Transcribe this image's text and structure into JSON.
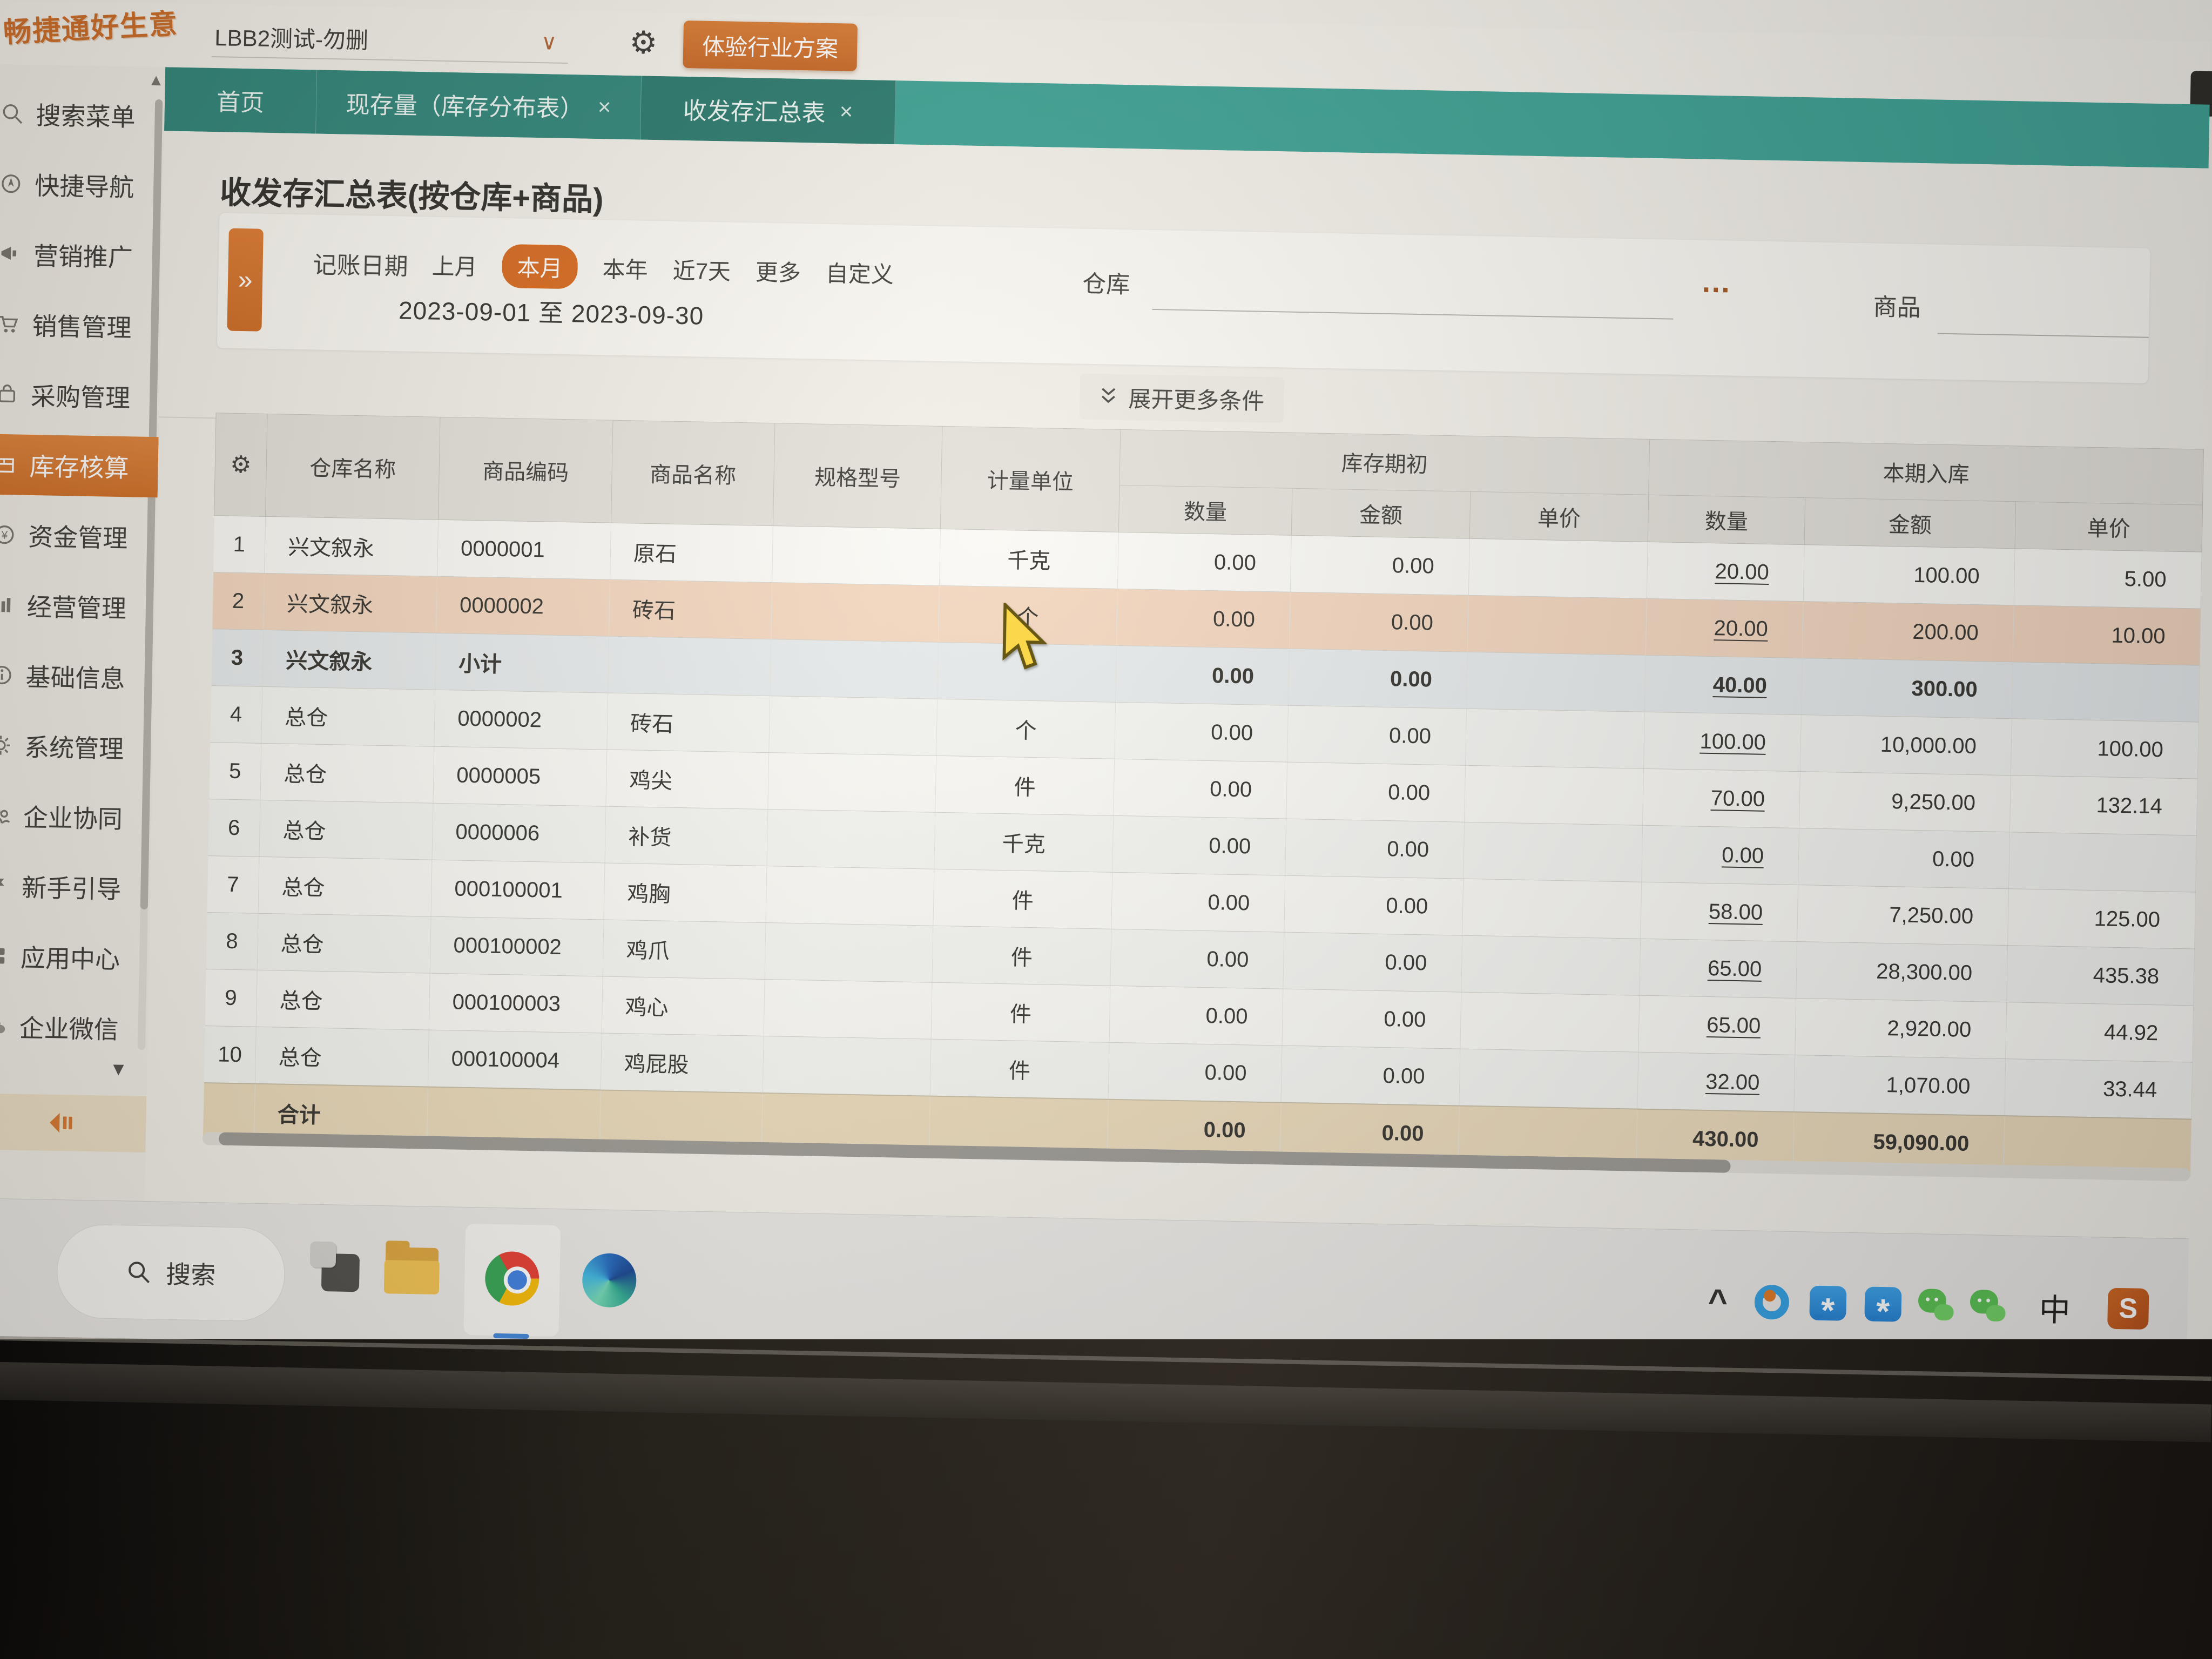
{
  "glyphs": {
    "close": "×",
    "dropdown": "∨",
    "expand": "»",
    "up_arrow": "▲",
    "down_arrow": "▼",
    "gear": "⚙",
    "tray_chevron": "^",
    "star": "*"
  },
  "top_bar": {
    "logo": "畅捷通好生意",
    "company": "LBB2测试-勿删",
    "trial_button": "体验行业方案"
  },
  "tabs": [
    {
      "label": "首页",
      "closable": false,
      "active": false
    },
    {
      "label": "现存量（库存分布表）",
      "closable": true,
      "active": false
    },
    {
      "label": "收发存汇总表",
      "closable": true,
      "active": true
    }
  ],
  "sidebar": {
    "items": [
      {
        "label": "搜索菜单",
        "icon": "search-icon",
        "active": false
      },
      {
        "label": "快捷导航",
        "icon": "compass-icon",
        "active": false
      },
      {
        "label": "营销推广",
        "icon": "megaphone-icon",
        "active": false
      },
      {
        "label": "销售管理",
        "icon": "cart-icon",
        "active": false
      },
      {
        "label": "采购管理",
        "icon": "bag-icon",
        "active": false
      },
      {
        "label": "库存核算",
        "icon": "box-icon",
        "active": true
      },
      {
        "label": "资金管理",
        "icon": "money-icon",
        "active": false
      },
      {
        "label": "经营管理",
        "icon": "chart-icon",
        "active": false
      },
      {
        "label": "基础信息",
        "icon": "info-icon",
        "active": false
      },
      {
        "label": "系统管理",
        "icon": "gear-icon",
        "active": false
      },
      {
        "label": "企业协同",
        "icon": "people-icon",
        "active": false
      },
      {
        "label": "新手引导",
        "icon": "flag-icon",
        "active": false
      },
      {
        "label": "应用中心",
        "icon": "grid-icon",
        "active": false
      },
      {
        "label": "企业微信",
        "icon": "wechat-icon",
        "active": false
      }
    ]
  },
  "page": {
    "title": "收发存汇总表(按仓库+商品)",
    "filter": {
      "date_label": "记账日期",
      "date_options": [
        {
          "label": "上月",
          "selected": false
        },
        {
          "label": "本月",
          "selected": true
        },
        {
          "label": "本年",
          "selected": false
        },
        {
          "label": "近7天",
          "selected": false
        },
        {
          "label": "更多",
          "selected": false
        },
        {
          "label": "自定义",
          "selected": false
        }
      ],
      "date_range": "2023-09-01 至 2023-09-30",
      "warehouse_label": "仓库",
      "warehouse_value": "",
      "ellipsis_glyph": "…",
      "product_label": "商品",
      "product_value": "",
      "expand_more_label": "展开更多条件"
    },
    "table": {
      "fixed_headers": [
        "仓库名称",
        "商品编码",
        "商品名称",
        "规格型号",
        "计量单位"
      ],
      "groups": [
        {
          "label": "库存期初",
          "columns": [
            "数量",
            "金额",
            "单价"
          ]
        },
        {
          "label": "本期入库",
          "columns": [
            "数量",
            "金额",
            "单价"
          ]
        }
      ],
      "rows": [
        {
          "no": "1",
          "warehouse": "兴文叙永",
          "code": "0000001",
          "name": "原石",
          "spec": "",
          "unit": "千克",
          "begin_qty": "0.00",
          "begin_amt": "0.00",
          "begin_price": "",
          "in_qty": "20.00",
          "in_amt": "100.00",
          "in_price": "5.00",
          "type": "normal"
        },
        {
          "no": "2",
          "warehouse": "兴文叙永",
          "code": "0000002",
          "name": "砖石",
          "spec": "",
          "unit": "个",
          "begin_qty": "0.00",
          "begin_amt": "0.00",
          "begin_price": "",
          "in_qty": "20.00",
          "in_amt": "200.00",
          "in_price": "10.00",
          "type": "highlight"
        },
        {
          "no": "3",
          "warehouse": "兴文叙永",
          "code": "小计",
          "name": "",
          "spec": "",
          "unit": "",
          "begin_qty": "0.00",
          "begin_amt": "0.00",
          "begin_price": "",
          "in_qty": "40.00",
          "in_amt": "300.00",
          "in_price": "",
          "type": "subtotal"
        },
        {
          "no": "4",
          "warehouse": "总仓",
          "code": "0000002",
          "name": "砖石",
          "spec": "",
          "unit": "个",
          "begin_qty": "0.00",
          "begin_amt": "0.00",
          "begin_price": "",
          "in_qty": "100.00",
          "in_amt": "10,000.00",
          "in_price": "100.00",
          "type": "normal"
        },
        {
          "no": "5",
          "warehouse": "总仓",
          "code": "0000005",
          "name": "鸡尖",
          "spec": "",
          "unit": "件",
          "begin_qty": "0.00",
          "begin_amt": "0.00",
          "begin_price": "",
          "in_qty": "70.00",
          "in_amt": "9,250.00",
          "in_price": "132.14",
          "type": "normal"
        },
        {
          "no": "6",
          "warehouse": "总仓",
          "code": "0000006",
          "name": "补货",
          "spec": "",
          "unit": "千克",
          "begin_qty": "0.00",
          "begin_amt": "0.00",
          "begin_price": "",
          "in_qty": "0.00",
          "in_amt": "0.00",
          "in_price": "",
          "type": "normal"
        },
        {
          "no": "7",
          "warehouse": "总仓",
          "code": "000100001",
          "name": "鸡胸",
          "spec": "",
          "unit": "件",
          "begin_qty": "0.00",
          "begin_amt": "0.00",
          "begin_price": "",
          "in_qty": "58.00",
          "in_amt": "7,250.00",
          "in_price": "125.00",
          "type": "normal"
        },
        {
          "no": "8",
          "warehouse": "总仓",
          "code": "000100002",
          "name": "鸡爪",
          "spec": "",
          "unit": "件",
          "begin_qty": "0.00",
          "begin_amt": "0.00",
          "begin_price": "",
          "in_qty": "65.00",
          "in_amt": "28,300.00",
          "in_price": "435.38",
          "type": "normal"
        },
        {
          "no": "9",
          "warehouse": "总仓",
          "code": "000100003",
          "name": "鸡心",
          "spec": "",
          "unit": "件",
          "begin_qty": "0.00",
          "begin_amt": "0.00",
          "begin_price": "",
          "in_qty": "65.00",
          "in_amt": "2,920.00",
          "in_price": "44.92",
          "type": "normal"
        },
        {
          "no": "10",
          "warehouse": "总仓",
          "code": "000100004",
          "name": "鸡屁股",
          "spec": "",
          "unit": "件",
          "begin_qty": "0.00",
          "begin_amt": "0.00",
          "begin_price": "",
          "in_qty": "32.00",
          "in_amt": "1,070.00",
          "in_price": "33.44",
          "type": "normal"
        }
      ],
      "total": {
        "label": "合计",
        "begin_qty": "0.00",
        "begin_amt": "0.00",
        "begin_price": "",
        "in_qty": "430.00",
        "in_amt": "59,090.00",
        "in_price": ""
      }
    }
  },
  "taskbar": {
    "search_label": "搜索",
    "ime_label": "中",
    "sogou_label": "S"
  }
}
